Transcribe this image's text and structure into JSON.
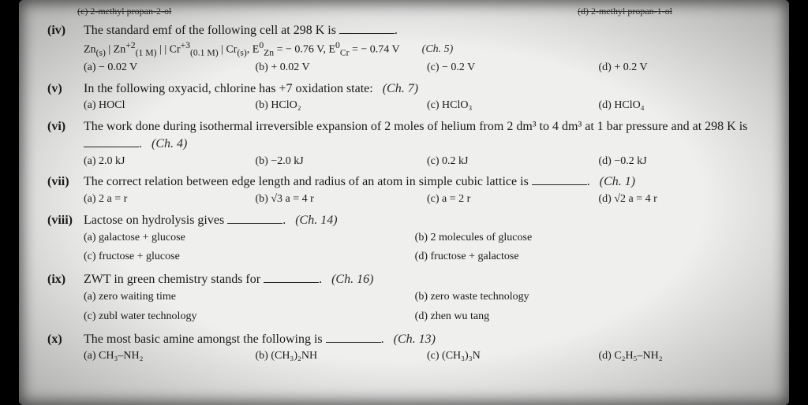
{
  "cutoff": {
    "left": "(c) 2-methyl propan-2-ol",
    "right": "(d) 2-methyl propan-1-ol"
  },
  "questions": [
    {
      "num": "(iv)",
      "text_pre": "The standard emf of the following cell at 298 K is ",
      "text_post": ".",
      "subline_html": "Zn<sub>(s)</sub> | Zn<sup>+2</sup><sub>(1 M)</sub> | | Cr<sup>+3</sup><sub>(0.1 M)</sub> | Cr<sub>(s)</sub>,  E<sup>0</sup><sub>Zn</sub> = − 0.76 V,  E<sup>0</sup><sub>Cr</sub> = − 0.74 V",
      "ch_ref": "(Ch. 5)",
      "options": [
        "(a) − 0.02 V",
        "(b) + 0.02 V",
        "(c) − 0.2 V",
        "(d) + 0.2 V"
      ]
    },
    {
      "num": "(v)",
      "text_pre": "In the following oxyacid, chlorine has +7 oxidation state:",
      "ch_ref_inline": "(Ch. 7)",
      "options": [
        "(a) HOCl",
        "(b) HClO₂",
        "(c) HClO₃",
        "(d) HClO₄"
      ]
    },
    {
      "num": "(vi)",
      "text_pre": "The work done during isothermal irreversible expansion of 2 moles of helium from 2 dm³ to 4 dm³ at 1 bar pressure and at 298 K is ",
      "text_post": ".",
      "ch_ref_inline": "(Ch. 4)",
      "options": [
        "(a) 2.0 kJ",
        "(b) −2.0 kJ",
        "(c) 0.2 kJ",
        "(d) −0.2 kJ"
      ]
    },
    {
      "num": "(vii)",
      "text_pre": "The correct relation between edge length and radius of an atom in simple cubic lattice is ",
      "text_post": ".",
      "ch_ref_inline": "(Ch. 1)",
      "options": [
        "(a) 2 a = r",
        "(b) √3 a = 4 r",
        "(c) a = 2 r",
        "(d) √2 a = 4 r"
      ]
    },
    {
      "num": "(viii)",
      "text_pre": "Lactose on hydrolysis gives ",
      "text_post": ".",
      "ch_ref_inline": "(Ch. 14)",
      "two_col": true,
      "options": [
        "(a) galactose + glucose",
        "(b) 2 molecules of glucose",
        "(c) fructose + glucose",
        "(d) fructose + galactose"
      ]
    },
    {
      "num": "(ix)",
      "text_pre": "ZWT in green chemistry stands for ",
      "text_post": ".",
      "ch_ref_inline": "(Ch. 16)",
      "two_col": true,
      "options": [
        "(a) zero waiting time",
        "(b) zero waste technology",
        "(c) zubl water technology",
        "(d) zhen wu tang"
      ]
    },
    {
      "num": "(x)",
      "text_pre": "The most basic amine amongst the following is ",
      "text_post": ".",
      "ch_ref_inline": "(Ch. 13)",
      "options": [
        "(a) CH₃–NH₂",
        "(b) (CH₃)₂NH",
        "(c) (CH₃)₃N",
        "(d) C₂H₅–NH₂"
      ]
    }
  ]
}
